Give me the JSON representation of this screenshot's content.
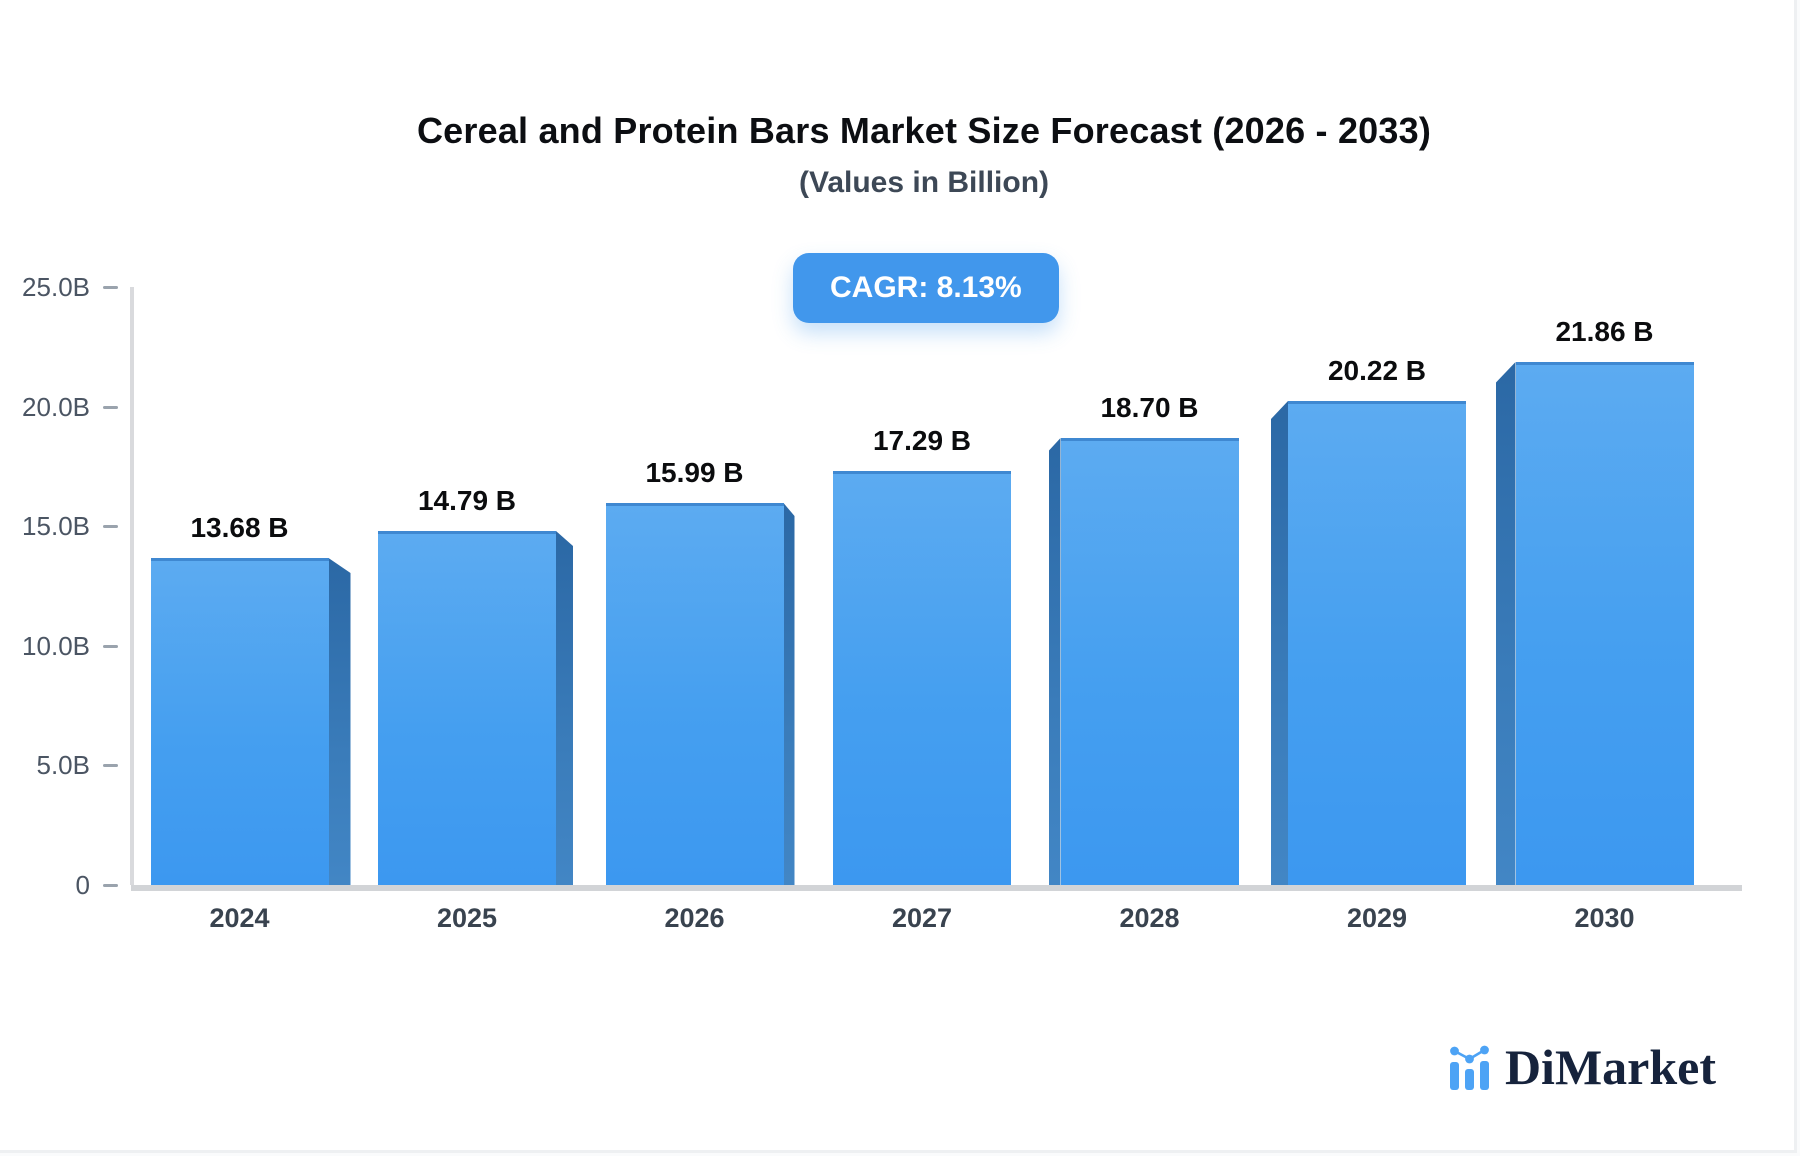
{
  "header": {
    "title": "Cereal and Protein Bars Market Size Forecast (2026 - 2033)",
    "subtitle": "(Values in Billion)"
  },
  "badge": {
    "label": "CAGR: 8.13%",
    "background": "#4197ec",
    "text_color": "#ffffff"
  },
  "chart_data": {
    "type": "bar",
    "title": "Cereal and Protein Bars Market Size Forecast (2026 - 2033)",
    "subtitle": "(Values in Billion)",
    "cagr_percent": 8.13,
    "categories": [
      "2024",
      "2025",
      "2026",
      "2027",
      "2028",
      "2029",
      "2030"
    ],
    "values": [
      13.68,
      14.79,
      15.99,
      17.29,
      18.7,
      20.22,
      21.86
    ],
    "value_labels": [
      "13.68 B",
      "14.79 B",
      "15.99 B",
      "17.29 B",
      "18.70 B",
      "20.22 B",
      "21.86 B"
    ],
    "xlabel": "",
    "ylabel": "",
    "ylim": [
      0,
      25
    ],
    "y_ticks": [
      {
        "label": "25.0B",
        "value": 25
      },
      {
        "label": "20.0B",
        "value": 20
      },
      {
        "label": "15.0B",
        "value": 15
      },
      {
        "label": "10.0B",
        "value": 10
      },
      {
        "label": "5.0B",
        "value": 5
      },
      {
        "label": "0",
        "value": 0
      }
    ],
    "grid": false,
    "legend": false,
    "bar_style": "3d-extruded",
    "colors": {
      "bar_face_top": "#5cabf1",
      "bar_face_bottom": "#3c98f0",
      "bar_face_border": "#3f88d1",
      "bar_side_dark": "#2b68a5",
      "bar_side_light": "#4286c5",
      "axis_line": "#d9dadd",
      "baseline": "#d2d4d7",
      "tick": "#9aa3ad",
      "y_label_text": "#4b5563",
      "x_label_text": "#39434f",
      "value_label_text": "#0b0c0e"
    }
  },
  "logo": {
    "text": "DiMarket",
    "icon": "bar-chart-trendline-icon",
    "accent_color": "#4da3f5",
    "text_color": "#16233c"
  }
}
